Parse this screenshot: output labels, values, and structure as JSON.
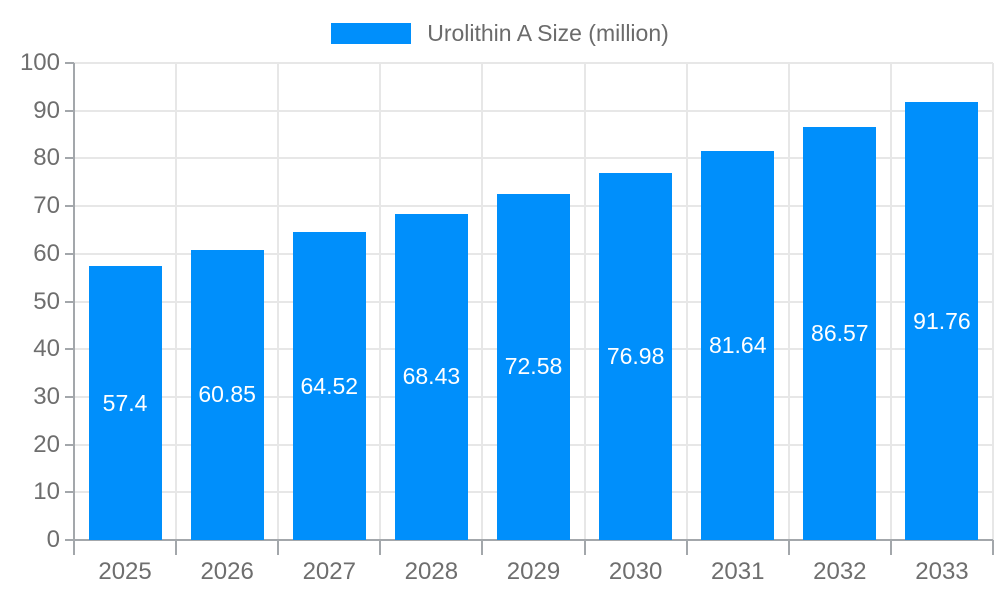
{
  "colors": {
    "bar": "#008FFB",
    "grid": "#e7e7e7",
    "axis": "#a3a7ab",
    "axis_label": "#6e6e6e",
    "value_label": "#ffffff",
    "legend_label": "#6b6b6b"
  },
  "legend": {
    "label": "Urolithin A Size (million)",
    "position": "top"
  },
  "chart_data": {
    "type": "bar",
    "title": "Urolithin A Size (million)",
    "categories": [
      "2025",
      "2026",
      "2027",
      "2028",
      "2029",
      "2030",
      "2031",
      "2032",
      "2033"
    ],
    "series": [
      {
        "name": "Urolithin A Size (million)",
        "values": [
          57.4,
          60.85,
          64.52,
          68.43,
          72.58,
          76.98,
          81.64,
          86.57,
          91.76
        ]
      }
    ],
    "value_labels": [
      "57.4",
      "60.85",
      "64.52",
      "68.43",
      "72.58",
      "76.98",
      "81.64",
      "86.57",
      "91.76"
    ],
    "xlabel": "",
    "ylabel": "",
    "ylim": [
      0,
      100
    ],
    "yticks": [
      0,
      10,
      20,
      30,
      40,
      50,
      60,
      70,
      80,
      90,
      100
    ],
    "grid": true,
    "legend_position": "top"
  }
}
